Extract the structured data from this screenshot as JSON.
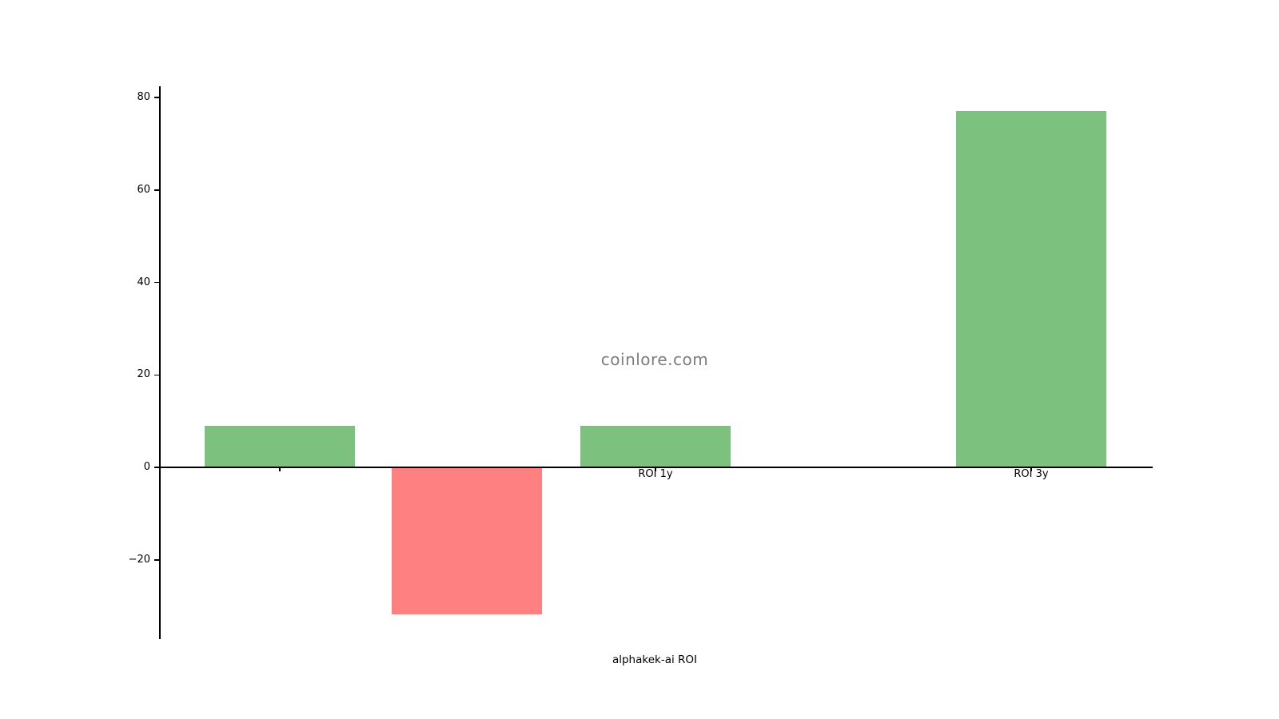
{
  "chart_data": {
    "type": "bar",
    "title": "",
    "xlabel": "alphakek-ai ROI",
    "ylabel": "",
    "watermark": "coinlore.com",
    "categories": [
      "",
      "",
      "ROI 1y",
      "ROI 3y"
    ],
    "values": [
      9.0,
      -31.8,
      9.0,
      77.1
    ],
    "bar_colors": [
      "#7dc17e",
      "#ff8080",
      "#7dc17e",
      "#7dc17e"
    ],
    "x_ticks_shown": [
      true,
      false,
      true,
      true
    ],
    "y_ticks": [
      80,
      60,
      40,
      20,
      0,
      -20
    ],
    "y_tick_labels": [
      "80",
      "60",
      "40",
      "20",
      "0",
      "−20"
    ],
    "ylim": [
      -37.2,
      82.5
    ],
    "grid": false,
    "legend_position": "none",
    "colors": {
      "positive_bar": "#7dc17e",
      "negative_bar": "#ff8080",
      "watermark_text": "#7d7d7d",
      "axis_line": "#000000",
      "tick_label": "#000000"
    }
  }
}
